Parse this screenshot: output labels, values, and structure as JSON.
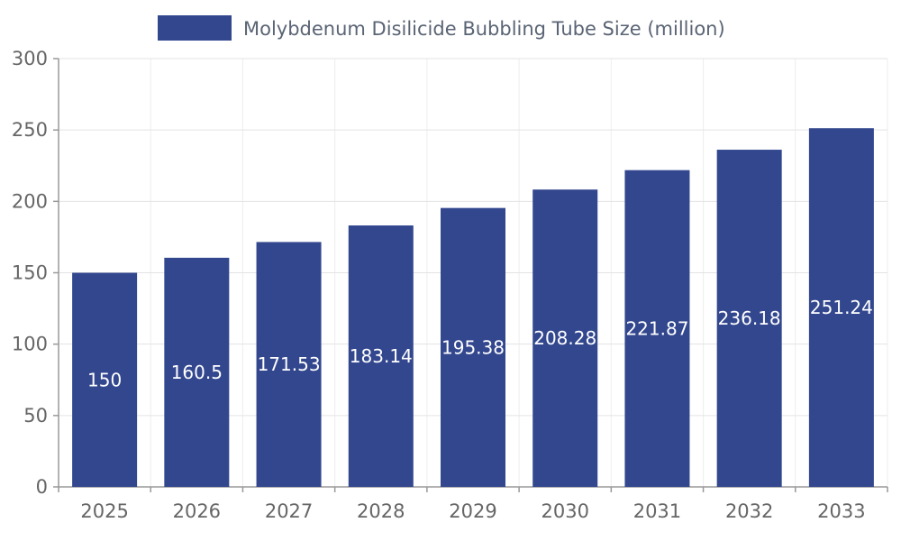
{
  "chart_data": {
    "type": "bar",
    "title": "Molybdenum Disilicide Bubbling Tube Size (million)",
    "categories": [
      "2025",
      "2026",
      "2027",
      "2028",
      "2029",
      "2030",
      "2031",
      "2032",
      "2033"
    ],
    "values": [
      150,
      160.5,
      171.53,
      183.14,
      195.38,
      208.28,
      221.87,
      236.18,
      251.24
    ],
    "value_labels": [
      "150",
      "160.5",
      "171.53",
      "183.14",
      "195.38",
      "208.28",
      "221.87",
      "236.18",
      "251.24"
    ],
    "ylim": [
      0,
      300
    ],
    "yticks": [
      0,
      50,
      100,
      150,
      200,
      250,
      300
    ],
    "ytick_labels": [
      "0",
      "50",
      "100",
      "150",
      "200",
      "250",
      "300"
    ],
    "grid": true,
    "legend_position": "top",
    "bar_color": "#33478e",
    "value_label_color": "#ffffff",
    "axis_text_color": "#666666",
    "title_color": "#5a6474",
    "grid_color": "#e3e3e3",
    "vgrid_color": "#eeeeee",
    "axis_line_color": "#999999"
  }
}
